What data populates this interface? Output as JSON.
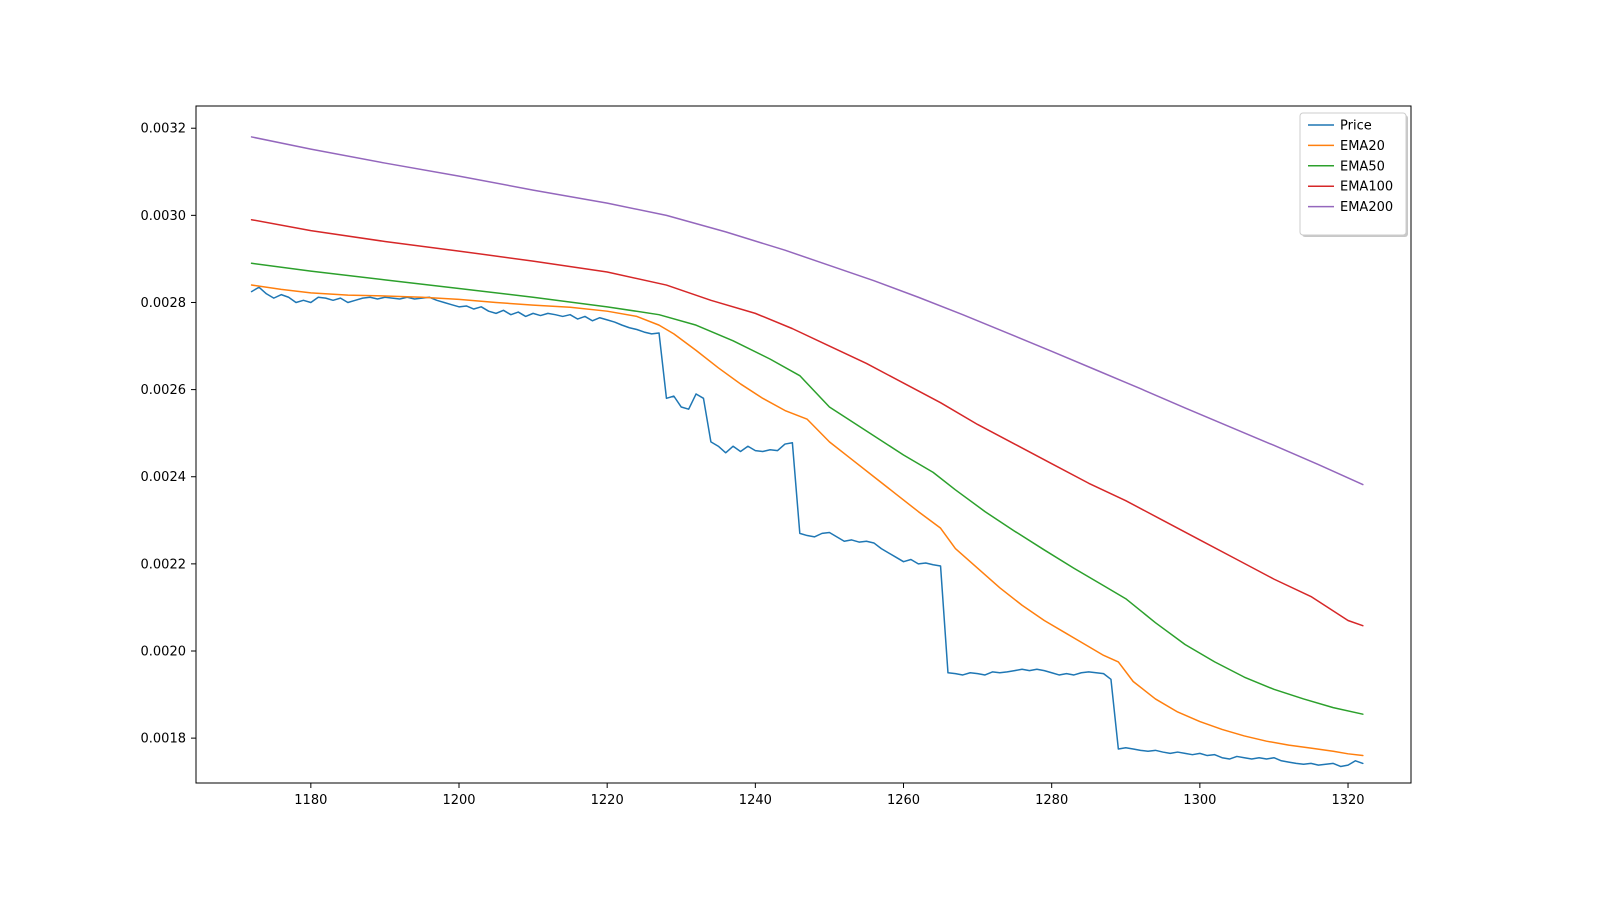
{
  "figure": {
    "background": "#ffffff"
  },
  "chart_data": {
    "type": "line",
    "title": "",
    "xlabel": "",
    "ylabel": "",
    "grid": false,
    "xlim": [
      1164.5,
      1328.5
    ],
    "ylim": [
      0.001697,
      0.003251
    ],
    "xticks": [
      1180,
      1200,
      1220,
      1240,
      1260,
      1280,
      1300,
      1320
    ],
    "yticks": [
      0.0018,
      0.002,
      0.0022,
      0.0024,
      0.0026,
      0.0028,
      0.003,
      0.0032
    ],
    "ytick_decimals": 4,
    "legend": {
      "position": "upper right",
      "border_color": "#cccccc",
      "background": "#ffffff",
      "entries": [
        "Price",
        "EMA20",
        "EMA50",
        "EMA100",
        "EMA200"
      ]
    },
    "series": [
      {
        "name": "Price",
        "color": "#1f77b4",
        "x_start": 1172,
        "x_step": 1,
        "values": [
          0.002825,
          0.002835,
          0.00282,
          0.00281,
          0.002818,
          0.002812,
          0.0028,
          0.002805,
          0.0028,
          0.002812,
          0.00281,
          0.002805,
          0.00281,
          0.0028,
          0.002805,
          0.00281,
          0.002812,
          0.002808,
          0.002812,
          0.00281,
          0.002808,
          0.002812,
          0.002808,
          0.00281,
          0.002812,
          0.002805,
          0.0028,
          0.002795,
          0.00279,
          0.002792,
          0.002785,
          0.00279,
          0.00278,
          0.002775,
          0.002782,
          0.002772,
          0.002778,
          0.002768,
          0.002775,
          0.00277,
          0.002775,
          0.002772,
          0.002768,
          0.002772,
          0.002762,
          0.002768,
          0.002758,
          0.002765,
          0.00276,
          0.002755,
          0.002748,
          0.002742,
          0.002738,
          0.002732,
          0.002728,
          0.00273,
          0.00258,
          0.002585,
          0.00256,
          0.002555,
          0.00259,
          0.00258,
          0.00248,
          0.00247,
          0.002455,
          0.00247,
          0.002458,
          0.00247,
          0.00246,
          0.002458,
          0.002462,
          0.00246,
          0.002475,
          0.002478,
          0.00227,
          0.002265,
          0.002262,
          0.00227,
          0.002272,
          0.002262,
          0.002252,
          0.002255,
          0.00225,
          0.002252,
          0.002248,
          0.002235,
          0.002225,
          0.002215,
          0.002205,
          0.00221,
          0.0022,
          0.002202,
          0.002198,
          0.002195,
          0.00195,
          0.001948,
          0.001945,
          0.00195,
          0.001948,
          0.001945,
          0.001952,
          0.00195,
          0.001952,
          0.001955,
          0.001958,
          0.001955,
          0.001958,
          0.001955,
          0.00195,
          0.001945,
          0.001948,
          0.001945,
          0.00195,
          0.001952,
          0.00195,
          0.001948,
          0.001935,
          0.001775,
          0.001778,
          0.001775,
          0.001772,
          0.00177,
          0.001772,
          0.001768,
          0.001765,
          0.001768,
          0.001765,
          0.001762,
          0.001765,
          0.00176,
          0.001762,
          0.001755,
          0.001752,
          0.001758,
          0.001755,
          0.001752,
          0.001755,
          0.001752,
          0.001755,
          0.001748,
          0.001745,
          0.001742,
          0.00174,
          0.001742,
          0.001738,
          0.00174,
          0.001742,
          0.001735,
          0.001738,
          0.001748,
          0.001742
        ]
      },
      {
        "name": "EMA20",
        "color": "#ff7f0e",
        "x": [
          1172,
          1176,
          1180,
          1185,
          1190,
          1195,
          1200,
          1205,
          1210,
          1215,
          1220,
          1224,
          1227,
          1229,
          1232,
          1235,
          1238,
          1241,
          1244,
          1247,
          1250,
          1253,
          1256,
          1259,
          1262,
          1265,
          1267,
          1270,
          1273,
          1276,
          1279,
          1282,
          1285,
          1287,
          1289,
          1291,
          1294,
          1297,
          1300,
          1303,
          1306,
          1309,
          1312,
          1315,
          1318,
          1320,
          1322
        ],
        "y": [
          0.00284,
          0.00283,
          0.002822,
          0.002817,
          0.002815,
          0.002812,
          0.002807,
          0.0028,
          0.002794,
          0.002789,
          0.00278,
          0.002768,
          0.002748,
          0.002728,
          0.00269,
          0.00265,
          0.002613,
          0.00258,
          0.002552,
          0.002532,
          0.00248,
          0.00244,
          0.0024,
          0.00236,
          0.00232,
          0.002282,
          0.002235,
          0.00219,
          0.002145,
          0.002105,
          0.00207,
          0.00204,
          0.00201,
          0.00199,
          0.001975,
          0.00193,
          0.00189,
          0.00186,
          0.001838,
          0.00182,
          0.001805,
          0.001793,
          0.001784,
          0.001777,
          0.00177,
          0.001764,
          0.00176
        ]
      },
      {
        "name": "EMA50",
        "color": "#2ca02c",
        "x": [
          1172,
          1180,
          1190,
          1200,
          1210,
          1220,
          1227,
          1232,
          1237,
          1242,
          1246,
          1250,
          1255,
          1260,
          1264,
          1267,
          1271,
          1275,
          1279,
          1283,
          1287,
          1290,
          1294,
          1298,
          1302,
          1306,
          1310,
          1314,
          1318,
          1322
        ],
        "y": [
          0.00289,
          0.002872,
          0.002852,
          0.002832,
          0.002812,
          0.00279,
          0.002772,
          0.002748,
          0.002712,
          0.00267,
          0.002632,
          0.00256,
          0.002505,
          0.00245,
          0.00241,
          0.00237,
          0.00232,
          0.002275,
          0.002232,
          0.00219,
          0.00215,
          0.00212,
          0.002065,
          0.002015,
          0.001975,
          0.00194,
          0.001912,
          0.00189,
          0.00187,
          0.001855
        ]
      },
      {
        "name": "EMA100",
        "color": "#d62728",
        "x": [
          1172,
          1180,
          1190,
          1200,
          1210,
          1220,
          1228,
          1234,
          1240,
          1245,
          1250,
          1255,
          1260,
          1265,
          1270,
          1275,
          1280,
          1285,
          1290,
          1295,
          1300,
          1305,
          1310,
          1315,
          1320,
          1322
        ],
        "y": [
          0.00299,
          0.002965,
          0.00294,
          0.002918,
          0.002895,
          0.00287,
          0.00284,
          0.002805,
          0.002775,
          0.00274,
          0.0027,
          0.00266,
          0.002615,
          0.00257,
          0.00252,
          0.002475,
          0.00243,
          0.002385,
          0.002345,
          0.0023,
          0.002255,
          0.00221,
          0.002165,
          0.002125,
          0.00207,
          0.002058
        ]
      },
      {
        "name": "EMA200",
        "color": "#9467bd",
        "x": [
          1172,
          1180,
          1190,
          1200,
          1210,
          1220,
          1228,
          1236,
          1244,
          1250,
          1256,
          1262,
          1268,
          1274,
          1280,
          1286,
          1292,
          1298,
          1304,
          1310,
          1316,
          1322
        ],
        "y": [
          0.00318,
          0.003152,
          0.00312,
          0.00309,
          0.003058,
          0.003028,
          0.003,
          0.002962,
          0.00292,
          0.002885,
          0.00285,
          0.002812,
          0.002772,
          0.00273,
          0.002688,
          0.002645,
          0.002602,
          0.002558,
          0.002515,
          0.002472,
          0.002428,
          0.002382
        ]
      }
    ]
  }
}
